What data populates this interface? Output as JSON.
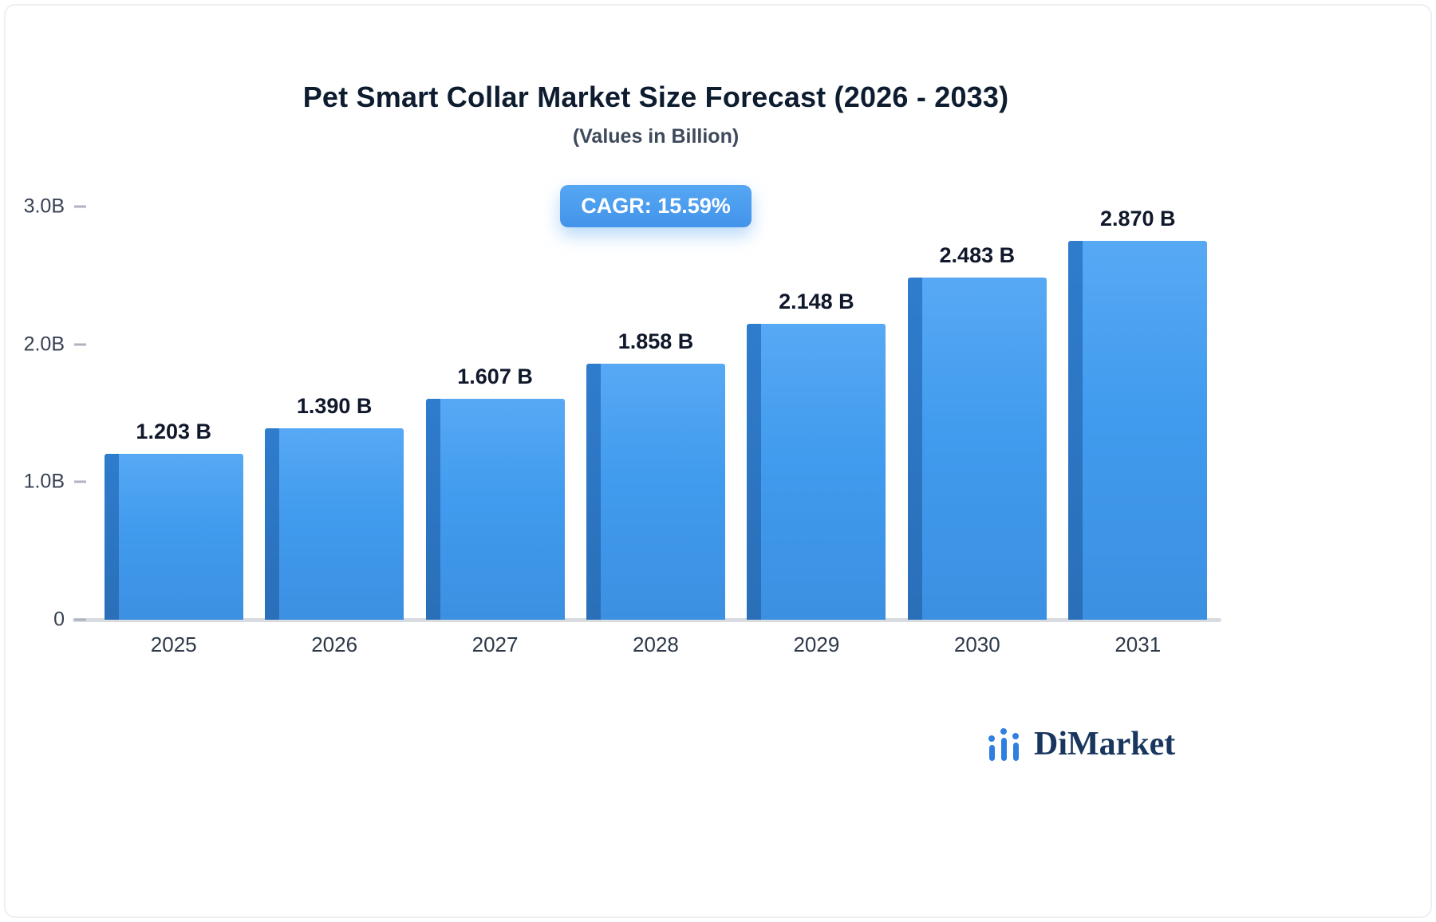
{
  "chart_data": {
    "type": "bar",
    "title": "Pet Smart Collar Market Size Forecast (2026 - 2033)",
    "subtitle": "(Values in Billion)",
    "badge": "CAGR: 15.59%",
    "categories": [
      "2025",
      "2026",
      "2027",
      "2028",
      "2029",
      "2030",
      "2031"
    ],
    "values": [
      1.203,
      1.39,
      1.607,
      1.858,
      2.148,
      2.483,
      2.87
    ],
    "value_labels": [
      "1.203 B",
      "1.390 B",
      "1.607 B",
      "1.858 B",
      "2.148 B",
      "2.483 B",
      "2.870 B"
    ],
    "ylim": [
      0,
      3.0
    ],
    "yticks": [
      {
        "value": 3.0,
        "label": "3.0B"
      },
      {
        "value": 2.0,
        "label": "2.0B"
      },
      {
        "value": 1.0,
        "label": "1.0B"
      },
      {
        "value": 0,
        "label": "0"
      }
    ],
    "grid": false,
    "legend": false,
    "bar_color": "#3f97ec",
    "bar_side_color": "#2e77c7",
    "badge_color": "#4a9df0"
  },
  "footer": {
    "brand": "DiMarket"
  }
}
